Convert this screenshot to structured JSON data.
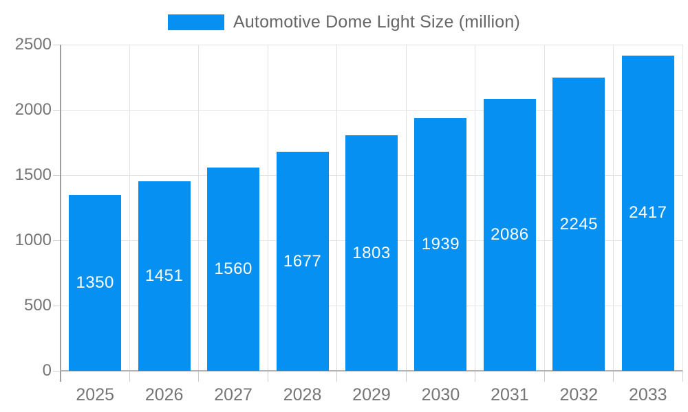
{
  "legend": {
    "label": "Automotive Dome Light Size (million)"
  },
  "chart_data": {
    "type": "bar",
    "title": "Automotive Dome Light Size (million)",
    "categories": [
      "2025",
      "2026",
      "2027",
      "2028",
      "2029",
      "2030",
      "2031",
      "2032",
      "2033"
    ],
    "values": [
      1350,
      1451,
      1560,
      1677,
      1803,
      1939,
      2086,
      2245,
      2417
    ],
    "series": [
      {
        "name": "Automotive Dome Light Size (million)",
        "values": [
          1350,
          1451,
          1560,
          1677,
          1803,
          1939,
          2086,
          2245,
          2417
        ]
      }
    ],
    "xlabel": "",
    "ylabel": "",
    "ylim": [
      0,
      2500
    ],
    "yticks": [
      0,
      500,
      1000,
      1500,
      2000,
      2500
    ],
    "grid": true,
    "legend_position": "top",
    "value_labels": "centered-inside-bars"
  },
  "colors": {
    "bar": "#0590f2",
    "gridline": "#e3e3e3",
    "y_axis_line": "#9e9e9e",
    "x_axis_line": "#b3b3b3",
    "tick": "#cccccc",
    "axis_text": "#757575",
    "legend_text": "#666666",
    "value_text": "#ffffff",
    "background": "#ffffff"
  }
}
